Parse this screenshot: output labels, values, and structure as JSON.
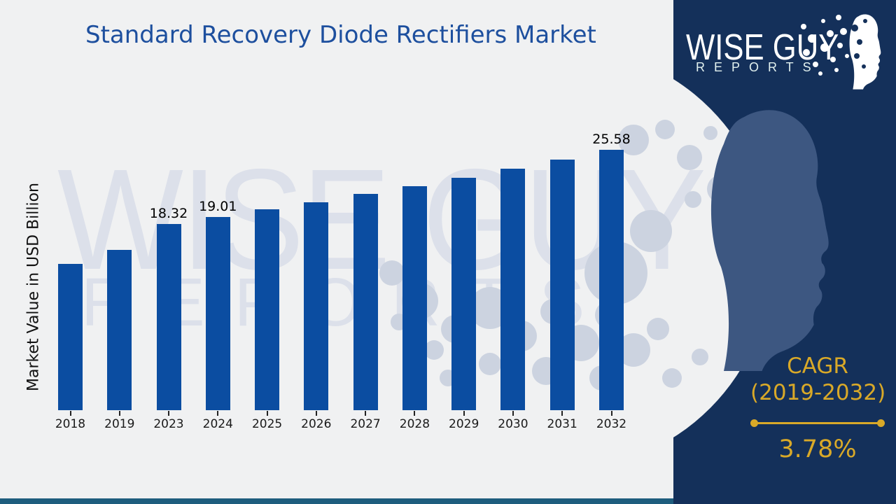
{
  "title": "Standard Recovery Diode Rectifiers Market",
  "logo": {
    "brand": "WISE GUY",
    "sub": "REPORTS"
  },
  "watermark": {
    "line1": "WISE GUY",
    "line2": "REPORTS"
  },
  "chart_data": {
    "type": "bar",
    "title": "Standard Recovery Diode Rectifiers Market",
    "xlabel": "",
    "ylabel": "Market Value in USD Billion",
    "categories": [
      "2018",
      "2019",
      "2023",
      "2024",
      "2025",
      "2026",
      "2027",
      "2028",
      "2029",
      "2030",
      "2031",
      "2032"
    ],
    "values": [
      14.39,
      15.79,
      18.32,
      19.01,
      19.73,
      20.48,
      21.25,
      22.05,
      22.89,
      23.75,
      24.65,
      25.58
    ],
    "value_labels": {
      "2023": "18.32",
      "2024": "19.01",
      "2032": "25.58"
    },
    "ylim": [
      0,
      27
    ],
    "grid": false,
    "legend": null,
    "bar_color": "#0b4da1"
  },
  "cagr": {
    "label": "CAGR",
    "range": "(2019-2032)",
    "value": "3.78%"
  },
  "colors": {
    "background": "#f0f1f2",
    "navy_panel": "#14305a",
    "bar_blue": "#0b4da1",
    "title_blue": "#1d4f9e",
    "gold": "#d9a928",
    "teal_strip": "#1e5d7e",
    "watermark_gray": "#dce0ea",
    "face_steel_blue": "#3d5781"
  }
}
